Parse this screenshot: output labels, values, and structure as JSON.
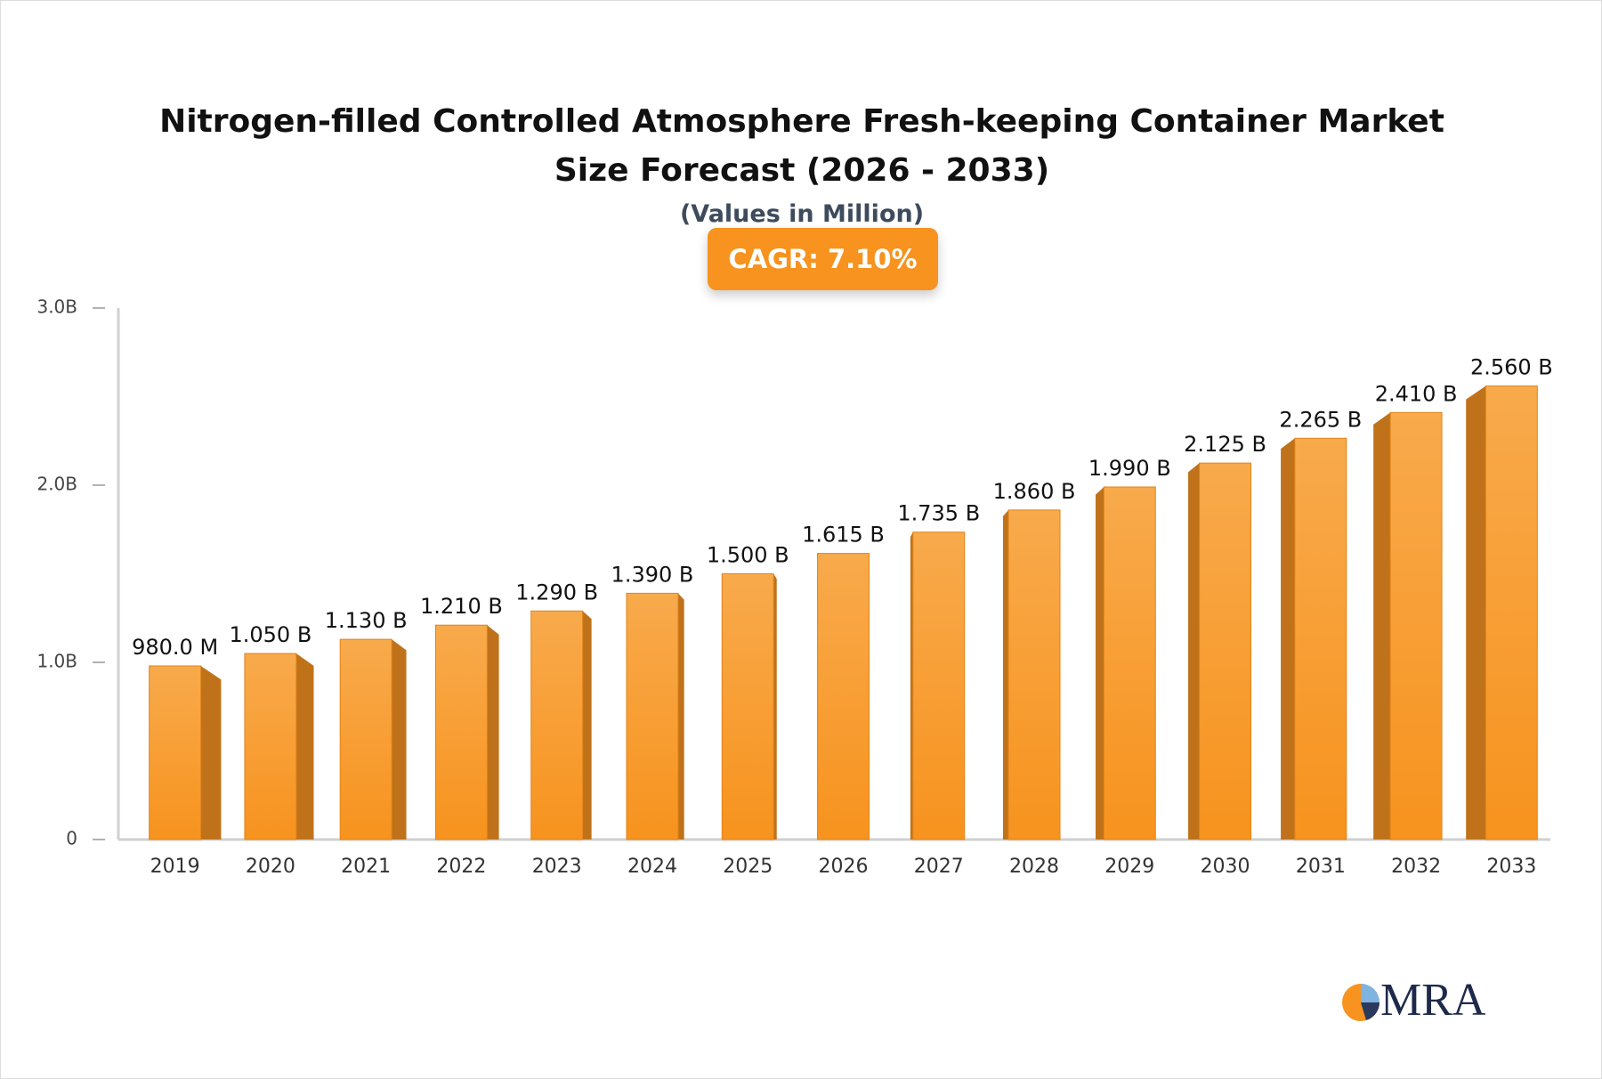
{
  "chart_data": {
    "type": "bar3d",
    "title": "Nitrogen-filled Controlled Atmosphere Fresh-keeping Container Market Size Forecast (2026 - 2033)",
    "subtitle": "(Values in Million)",
    "annotation": "CAGR: 7.10%",
    "categories": [
      "2019",
      "2020",
      "2021",
      "2022",
      "2023",
      "2024",
      "2025",
      "2026",
      "2027",
      "2028",
      "2029",
      "2030",
      "2031",
      "2032",
      "2033"
    ],
    "values": [
      980,
      1050,
      1130,
      1210,
      1290,
      1390,
      1500,
      1615,
      1735,
      1860,
      1990,
      2125,
      2265,
      2410,
      2560
    ],
    "value_labels": [
      "980.0 M",
      "1.050 B",
      "1.130 B",
      "1.210 B",
      "1.290 B",
      "1.390 B",
      "1.500 B",
      "1.615 B",
      "1.735 B",
      "1.860 B",
      "1.990 B",
      "2.125 B",
      "2.265 B",
      "2.410 B",
      "2.560 B"
    ],
    "color": "#f7931e",
    "ylim": [
      0,
      3000
    ],
    "yticks": [
      0,
      {
        "value": 1000,
        "label": "1.0B"
      },
      {
        "value": 2000,
        "label": "2.0B"
      },
      {
        "value": 3000,
        "label": "3.0B"
      }
    ],
    "grid": false
  },
  "logo_text": "MRA"
}
